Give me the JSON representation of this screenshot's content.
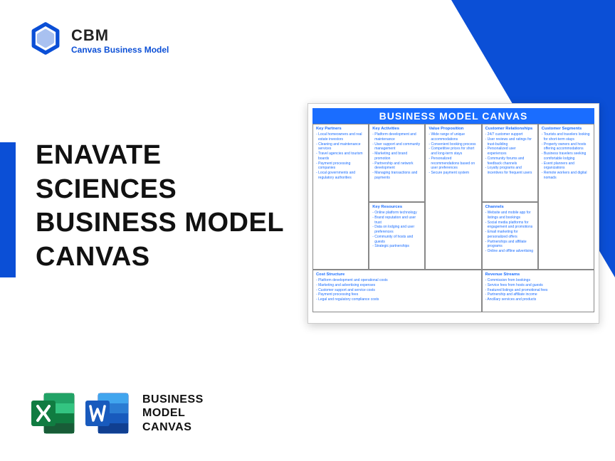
{
  "logo": {
    "name": "CBM",
    "subtitle": "Canvas Business Model"
  },
  "headline": {
    "l1": "ENAVATE",
    "l2": "SCIENCES",
    "l3": "BUSINESS MODEL",
    "l4": "CANVAS"
  },
  "bottomLabel": {
    "l1": "BUSINESS",
    "l2": "MODEL",
    "l3": "CANVAS"
  },
  "colors": {
    "brand": "#0b4fd6",
    "chartBlue": "#1a6dff",
    "excel": "#107c41",
    "word": "#185abd"
  },
  "canvas": {
    "title": "BUSINESS MODEL CANVAS",
    "keyPartners": {
      "title": "Key Partners",
      "items": [
        "Local homeowners and real estate investors",
        "Cleaning and maintenance services",
        "Travel agencies and tourism boards",
        "Payment processing companies",
        "Local governments and regulatory authorities"
      ]
    },
    "keyActivities": {
      "title": "Key Activities",
      "items": [
        "Platform development and maintenance",
        "User support and community management",
        "Marketing and brand promotion",
        "Partnership and network development",
        "Managing transactions and payments"
      ]
    },
    "keyResources": {
      "title": "Key Resources",
      "items": [
        "Online platform technology",
        "Brand reputation and user trust",
        "Data on lodging and user preferences",
        "Community of hosts and guests",
        "Strategic partnerships"
      ]
    },
    "valueProposition": {
      "title": "Value Proposition",
      "items": [
        "Wide range of unique accommodations",
        "Convenient booking process",
        "Competitive prices for short and long-term stays",
        "Personalized recommendations based on user preferences",
        "Secure payment system"
      ]
    },
    "customerRelationships": {
      "title": "Customer Relationships",
      "items": [
        "24/7 customer support",
        "User reviews and ratings for trust-building",
        "Personalized user experiences",
        "Community forums and feedback channels",
        "Loyalty programs and incentives for frequent users"
      ]
    },
    "channels": {
      "title": "Channels",
      "items": [
        "Website and mobile app for listings and bookings",
        "Social media platforms for engagement and promotions",
        "Email marketing for personalized offers",
        "Partnerships and affiliate programs",
        "Online and offline advertising"
      ]
    },
    "customerSegments": {
      "title": "Customer Segments",
      "items": [
        "Tourists and travelers looking for short-term stays",
        "Property owners and hosts offering accommodations",
        "Business travelers seeking comfortable lodging",
        "Event planners and organizations",
        "Remote workers and digital nomads"
      ]
    },
    "costStructure": {
      "title": "Cost Structure",
      "items": [
        "Platform development and operational costs",
        "Marketing and advertising expenses",
        "Customer support and service costs",
        "Payment processing fees",
        "Legal and regulatory compliance costs"
      ]
    },
    "revenueStreams": {
      "title": "Revenue Streams",
      "items": [
        "Commission from bookings",
        "Service fees from hosts and guests",
        "Featured listings and promotional fees",
        "Partnership and affiliate income",
        "Ancillary services and products"
      ]
    }
  }
}
